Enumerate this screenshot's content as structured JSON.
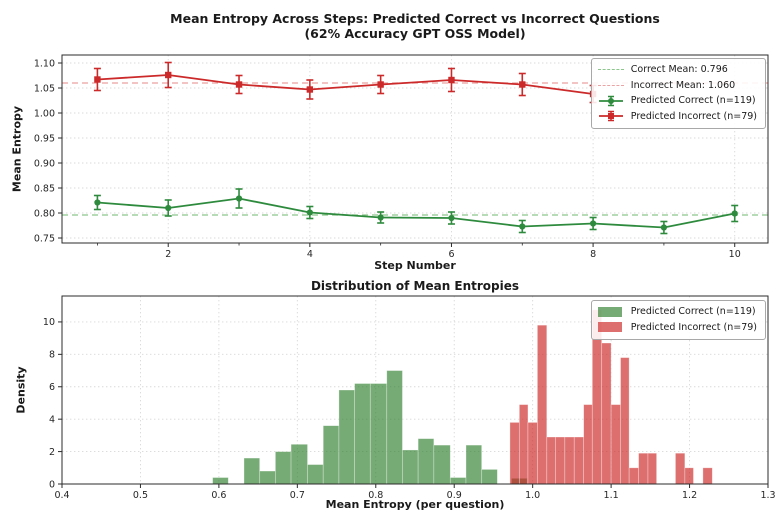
{
  "figure": {
    "title_line1": "Mean Entropy Across Steps: Predicted Correct vs Incorrect Questions",
    "title_line2": "(62% Accuracy GPT OSS Model)"
  },
  "colors": {
    "correct_line": "#2e8b3e",
    "incorrect_line": "#cc2a2a",
    "correct_fill": "rgba(34,119,34,0.62)",
    "incorrect_fill": "rgba(204,34,34,0.65)",
    "correct_mean_dash": "rgba(0,128,0,0.45)",
    "incorrect_mean_dash": "rgba(204,34,34,0.42)",
    "grid": "#d8d8d8",
    "spine": "#2b2b2b",
    "text": "#262626"
  },
  "chart_data": [
    {
      "type": "line",
      "id": "steps-chart",
      "title": "",
      "xlabel": "Step Number",
      "ylabel": "Mean Entropy",
      "xlim": [
        0.5,
        10.47
      ],
      "ylim": [
        0.74,
        1.116
      ],
      "xticks": [
        2,
        4,
        6,
        8,
        10
      ],
      "xtick_labels": [
        "2",
        "4",
        "6",
        "8",
        "10"
      ],
      "xminorticks": [
        1,
        3,
        5,
        7,
        9
      ],
      "yticks": [
        0.75,
        0.8,
        0.85,
        0.9,
        0.95,
        1.0,
        1.05,
        1.1
      ],
      "ytick_labels": [
        "0.75",
        "0.80",
        "0.85",
        "0.90",
        "0.95",
        "1.00",
        "1.05",
        "1.10"
      ],
      "grid": true,
      "legend_position": "upper right",
      "mean_lines": [
        {
          "label": "Correct Mean: 0.796",
          "y": 0.796,
          "color_key": "correct_mean_dash"
        },
        {
          "label": "Incorrect Mean: 1.060",
          "y": 1.06,
          "color_key": "incorrect_mean_dash"
        }
      ],
      "series": [
        {
          "name": "Predicted Correct (n=119)",
          "color_key": "correct_line",
          "marker": "circle",
          "x": [
            1,
            2,
            3,
            4,
            5,
            6,
            7,
            8,
            9,
            10
          ],
          "y": [
            0.821,
            0.81,
            0.829,
            0.801,
            0.791,
            0.79,
            0.773,
            0.779,
            0.771,
            0.799
          ],
          "yerr": [
            0.014,
            0.016,
            0.019,
            0.012,
            0.011,
            0.012,
            0.012,
            0.012,
            0.012,
            0.016
          ]
        },
        {
          "name": "Predicted Incorrect (n=79)",
          "color_key": "incorrect_line",
          "marker": "square",
          "x": [
            1,
            2,
            3,
            4,
            5,
            6,
            7,
            8
          ],
          "y": [
            1.067,
            1.076,
            1.057,
            1.047,
            1.057,
            1.066,
            1.057,
            1.038
          ],
          "yerr": [
            0.022,
            0.025,
            0.018,
            0.019,
            0.018,
            0.023,
            0.022,
            0.017
          ]
        }
      ],
      "legend_entries": [
        {
          "swatch": "dash",
          "color_key": "correct_mean_dash",
          "label": "Correct Mean: 0.796"
        },
        {
          "swatch": "dash",
          "color_key": "incorrect_mean_dash",
          "label": "Incorrect Mean: 1.060"
        },
        {
          "swatch": "errorbar",
          "color_key": "correct_line",
          "marker": "circle",
          "label": "Predicted Correct (n=119)"
        },
        {
          "swatch": "errorbar",
          "color_key": "incorrect_line",
          "marker": "square",
          "label": "Predicted Incorrect (n=79)"
        }
      ]
    },
    {
      "type": "histogram",
      "id": "dist-chart",
      "title": "Distribution of Mean Entropies",
      "xlabel": "Mean Entropy (per question)",
      "ylabel": "Density",
      "xlim": [
        0.4,
        1.3
      ],
      "ylim": [
        0,
        11.6
      ],
      "xticks": [
        0.4,
        0.5,
        0.6,
        0.7,
        0.8,
        0.9,
        1.0,
        1.1,
        1.2,
        1.3
      ],
      "xtick_labels": [
        "0.4",
        "0.5",
        "0.6",
        "0.7",
        "0.8",
        "0.9",
        "1.0",
        "1.1",
        "1.2",
        "1.3"
      ],
      "yticks": [
        0,
        2,
        4,
        6,
        8,
        10
      ],
      "ytick_labels": [
        "0",
        "2",
        "4",
        "6",
        "8",
        "10"
      ],
      "grid": true,
      "legend_position": "upper right",
      "series": [
        {
          "name": "Predicted Correct (n=119)",
          "color_key": "correct_fill",
          "bars": [
            [
              0.592,
              0.612,
              0.4
            ],
            [
              0.632,
              0.652,
              1.6
            ],
            [
              0.652,
              0.672,
              0.8
            ],
            [
              0.672,
              0.692,
              2.0
            ],
            [
              0.692,
              0.713,
              2.45
            ],
            [
              0.713,
              0.733,
              1.2
            ],
            [
              0.733,
              0.753,
              3.6
            ],
            [
              0.753,
              0.773,
              5.8
            ],
            [
              0.773,
              0.793,
              6.2
            ],
            [
              0.793,
              0.814,
              6.2
            ],
            [
              0.814,
              0.834,
              7.0
            ],
            [
              0.834,
              0.854,
              2.1
            ],
            [
              0.854,
              0.874,
              2.8
            ],
            [
              0.874,
              0.895,
              2.4
            ],
            [
              0.895,
              0.915,
              0.4
            ],
            [
              0.915,
              0.935,
              2.4
            ],
            [
              0.935,
              0.955,
              0.9
            ],
            [
              0.973,
              0.993,
              0.35
            ]
          ]
        },
        {
          "name": "Predicted Incorrect (n=79)",
          "color_key": "incorrect_fill",
          "bars": [
            [
              0.971,
              0.983,
              3.8
            ],
            [
              0.983,
              0.994,
              4.9
            ],
            [
              0.994,
              1.006,
              3.8
            ],
            [
              1.006,
              1.018,
              9.8
            ],
            [
              1.018,
              1.029,
              2.9
            ],
            [
              1.029,
              1.041,
              2.9
            ],
            [
              1.041,
              1.053,
              2.9
            ],
            [
              1.053,
              1.065,
              2.9
            ],
            [
              1.065,
              1.076,
              4.9
            ],
            [
              1.076,
              1.088,
              10.75
            ],
            [
              1.088,
              1.1,
              8.7
            ],
            [
              1.1,
              1.112,
              4.9
            ],
            [
              1.112,
              1.123,
              7.8
            ],
            [
              1.123,
              1.135,
              1.0
            ],
            [
              1.135,
              1.147,
              1.9
            ],
            [
              1.147,
              1.158,
              1.9
            ],
            [
              1.182,
              1.194,
              1.9
            ],
            [
              1.194,
              1.205,
              1.0
            ],
            [
              1.217,
              1.229,
              1.0
            ]
          ]
        }
      ],
      "legend_entries": [
        {
          "swatch": "patch",
          "color_key": "correct_fill",
          "label": "Predicted Correct (n=119)"
        },
        {
          "swatch": "patch",
          "color_key": "incorrect_fill",
          "label": "Predicted Incorrect (n=79)"
        }
      ]
    }
  ]
}
